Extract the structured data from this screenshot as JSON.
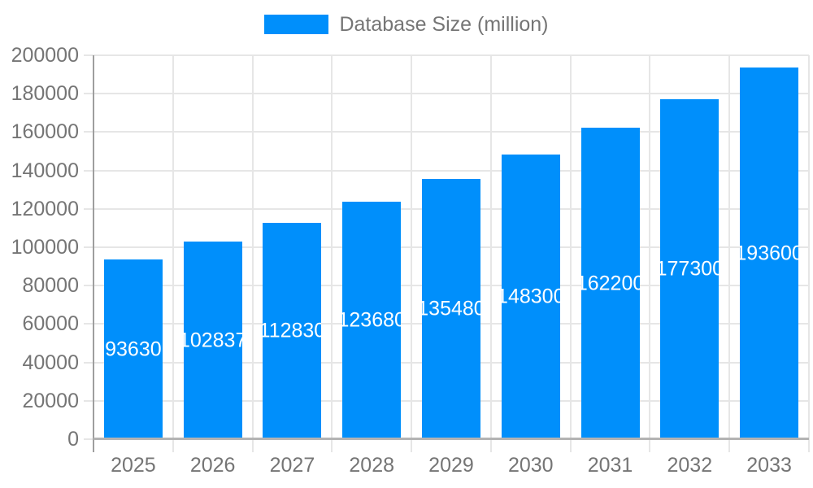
{
  "chart_data": {
    "type": "bar",
    "title": "",
    "xlabel": "",
    "ylabel": "",
    "legend": {
      "label": "Database Size (million)",
      "position": "top"
    },
    "categories": [
      "2025",
      "2026",
      "2027",
      "2028",
      "2029",
      "2030",
      "2031",
      "2032",
      "2033"
    ],
    "series": [
      {
        "name": "Database Size (million)",
        "values": [
          93630,
          102837,
          112830,
          123680,
          135480,
          148300,
          162200,
          177300,
          193600
        ]
      }
    ],
    "data_labels": [
      "93630",
      "102837",
      "112830",
      "123680",
      "135480",
      "148300",
      "162200",
      "177300",
      "193600"
    ],
    "ylim": [
      0,
      200000
    ],
    "ytick_step": 20000,
    "ytick_labels": [
      "0",
      "20000",
      "40000",
      "60000",
      "80000",
      "100000",
      "120000",
      "140000",
      "160000",
      "180000",
      "200000"
    ],
    "grid": true,
    "legend_position": "top",
    "colors": {
      "bar": "#008ffb",
      "data_label": "#ffffff",
      "axis_text": "#757575",
      "gridline": "#e6e6e6",
      "y_axis_line": "#9e9e9e",
      "x_axis_line": "#b3b3b3"
    }
  }
}
